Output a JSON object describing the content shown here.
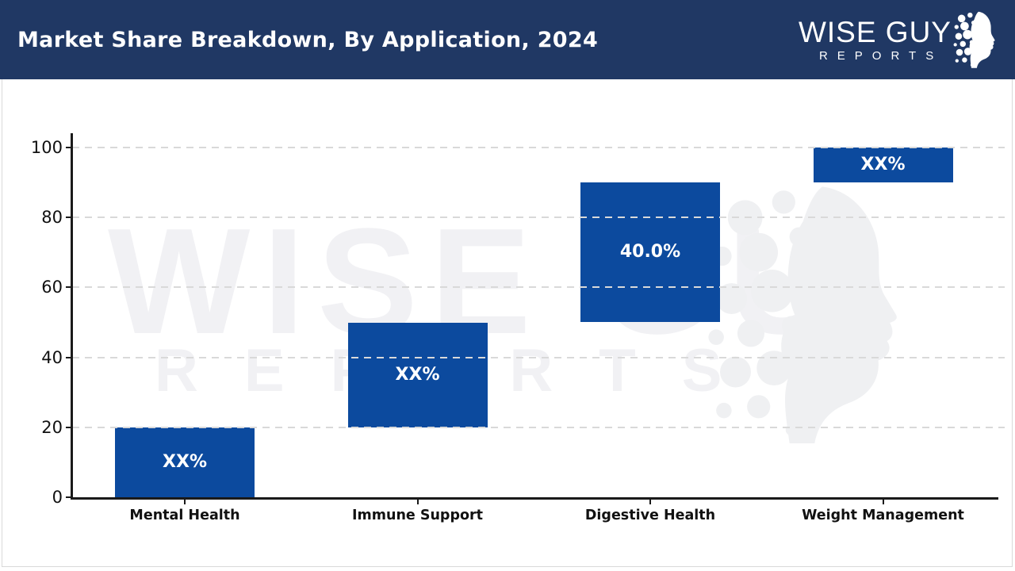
{
  "header": {
    "title": "Market Share Breakdown, By Application, 2024",
    "bg_color": "#203864",
    "logo": {
      "wordmark": "WISE GUY",
      "subtext": "REPORTS"
    }
  },
  "watermark": {
    "wordmark": "WISE GU",
    "subtext": "REPORTS"
  },
  "chart_data": {
    "type": "bar",
    "subtype": "waterfall-floating-segments",
    "title": "Market Share Breakdown, By Application, 2024",
    "categories": [
      "Mental Health",
      "Immune Support",
      "Digestive Health",
      "Weight Management"
    ],
    "segments": [
      {
        "category": "Mental Health",
        "start": 0,
        "end": 20,
        "label": "XX%"
      },
      {
        "category": "Immune Support",
        "start": 20,
        "end": 50,
        "label": "XX%"
      },
      {
        "category": "Digestive Health",
        "start": 50,
        "end": 90,
        "label": "40.0%"
      },
      {
        "category": "Weight Management",
        "start": 90,
        "end": 100,
        "label": "XX%"
      }
    ],
    "ylim": [
      0,
      100
    ],
    "y_ticks": [
      0,
      20,
      40,
      60,
      80,
      100
    ],
    "grid": "horizontal-dashed",
    "gridline_color": "#d9d9d9",
    "bar_color": "#0c4a9e",
    "bar_label_color": "#ffffff",
    "axis_color": "#1a1a1a",
    "legend": "none"
  }
}
